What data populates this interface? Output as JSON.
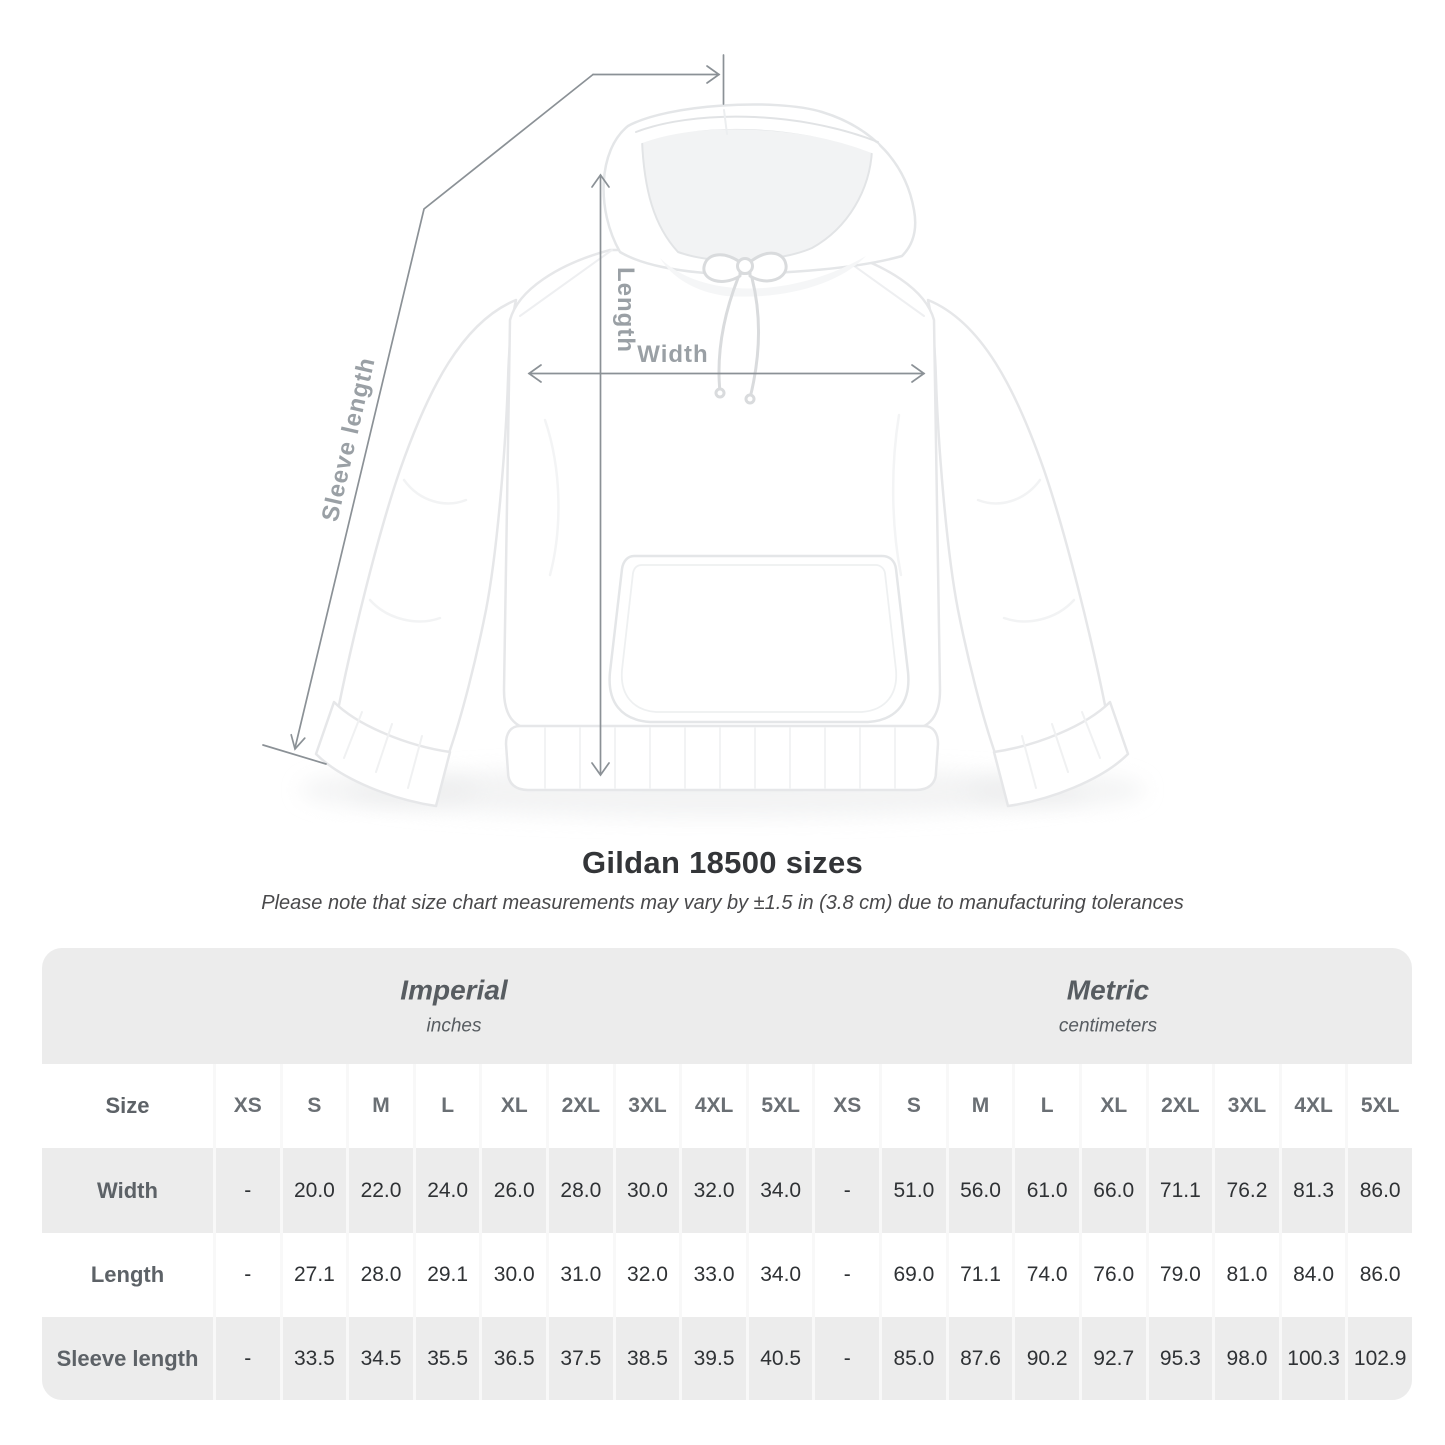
{
  "diagram": {
    "labels": {
      "length": "Length",
      "width": "Width",
      "sleeve": "Sleeve length"
    },
    "line_color": "#8b9196",
    "label_color": "#9aa0a5",
    "garment": "white pullover hoodie, front view, drawstring bow, kangaroo pocket, ribbed cuffs and hem"
  },
  "heading": {
    "title": "Gildan 18500 sizes",
    "subtitle": "Please note that size chart measurements may vary by ±1.5 in (3.8 cm) due to manufacturing tolerances"
  },
  "size_table": {
    "unit_groups": [
      {
        "label": "Imperial",
        "sublabel": "inches"
      },
      {
        "label": "Metric",
        "sublabel": "centimeters"
      }
    ],
    "size_header": "Size",
    "sizes": [
      "XS",
      "S",
      "M",
      "L",
      "XL",
      "2XL",
      "3XL",
      "4XL",
      "5XL"
    ],
    "rows": [
      {
        "label": "Width",
        "imperial": [
          "-",
          "20.0",
          "22.0",
          "24.0",
          "26.0",
          "28.0",
          "30.0",
          "32.0",
          "34.0"
        ],
        "metric": [
          "-",
          "51.0",
          "56.0",
          "61.0",
          "66.0",
          "71.1",
          "76.2",
          "81.3",
          "86.0"
        ]
      },
      {
        "label": "Length",
        "imperial": [
          "-",
          "27.1",
          "28.0",
          "29.1",
          "30.0",
          "31.0",
          "32.0",
          "33.0",
          "34.0"
        ],
        "metric": [
          "-",
          "69.0",
          "71.1",
          "74.0",
          "76.0",
          "79.0",
          "81.0",
          "84.0",
          "86.0"
        ]
      },
      {
        "label": "Sleeve length",
        "imperial": [
          "-",
          "33.5",
          "34.5",
          "35.5",
          "36.5",
          "37.5",
          "38.5",
          "39.5",
          "40.5"
        ],
        "metric": [
          "-",
          "85.0",
          "87.6",
          "90.2",
          "92.7",
          "95.3",
          "98.0",
          "100.3",
          "102.9"
        ]
      }
    ],
    "stripe_color": "#ececec",
    "separator_color": "#f8f8f8"
  }
}
